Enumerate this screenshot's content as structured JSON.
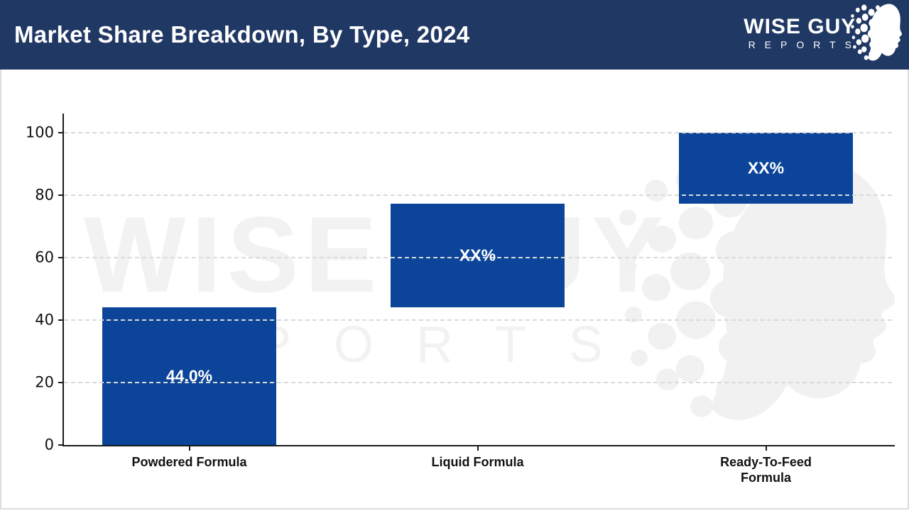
{
  "header": {
    "title": "Market Share Breakdown, By Type, 2024",
    "logo": {
      "line1": "WISE GUY",
      "line2": "REPORTS"
    }
  },
  "watermark": {
    "line1": "WISE GUY",
    "line2": "REPORTS"
  },
  "colors": {
    "header_bg": "#203864",
    "bar_fill": "#0b4499",
    "bar_label_text": "#ffffff",
    "gridline": "#dadada",
    "axis": "#1a1a1a",
    "watermark": "#f2f2f2"
  },
  "chart_data": {
    "type": "bar",
    "subtype": "waterfall-segments",
    "title": "Market Share Breakdown, By Type, 2024",
    "categories": [
      "Powdered Formula",
      "Liquid Formula",
      "Ready-To-Feed Formula"
    ],
    "category_label_lines": [
      [
        "Powdered Formula"
      ],
      [
        "Liquid Formula"
      ],
      [
        "Ready-To-Feed",
        "Formula"
      ]
    ],
    "bars": [
      {
        "category": "Powdered Formula",
        "start": 0,
        "end": 44.0,
        "value_label": "44.0%"
      },
      {
        "category": "Liquid Formula",
        "start": 44.0,
        "end": 77.2,
        "value_label": "XX%"
      },
      {
        "category": "Ready-To-Feed Formula",
        "start": 77.2,
        "end": 100.0,
        "value_label": "XX%"
      }
    ],
    "xlabel": "",
    "ylabel": "",
    "ylim": [
      0,
      100
    ],
    "yticks": [
      0,
      20,
      40,
      60,
      80,
      100
    ],
    "grid": "horizontal-dashed",
    "legend": "none"
  }
}
